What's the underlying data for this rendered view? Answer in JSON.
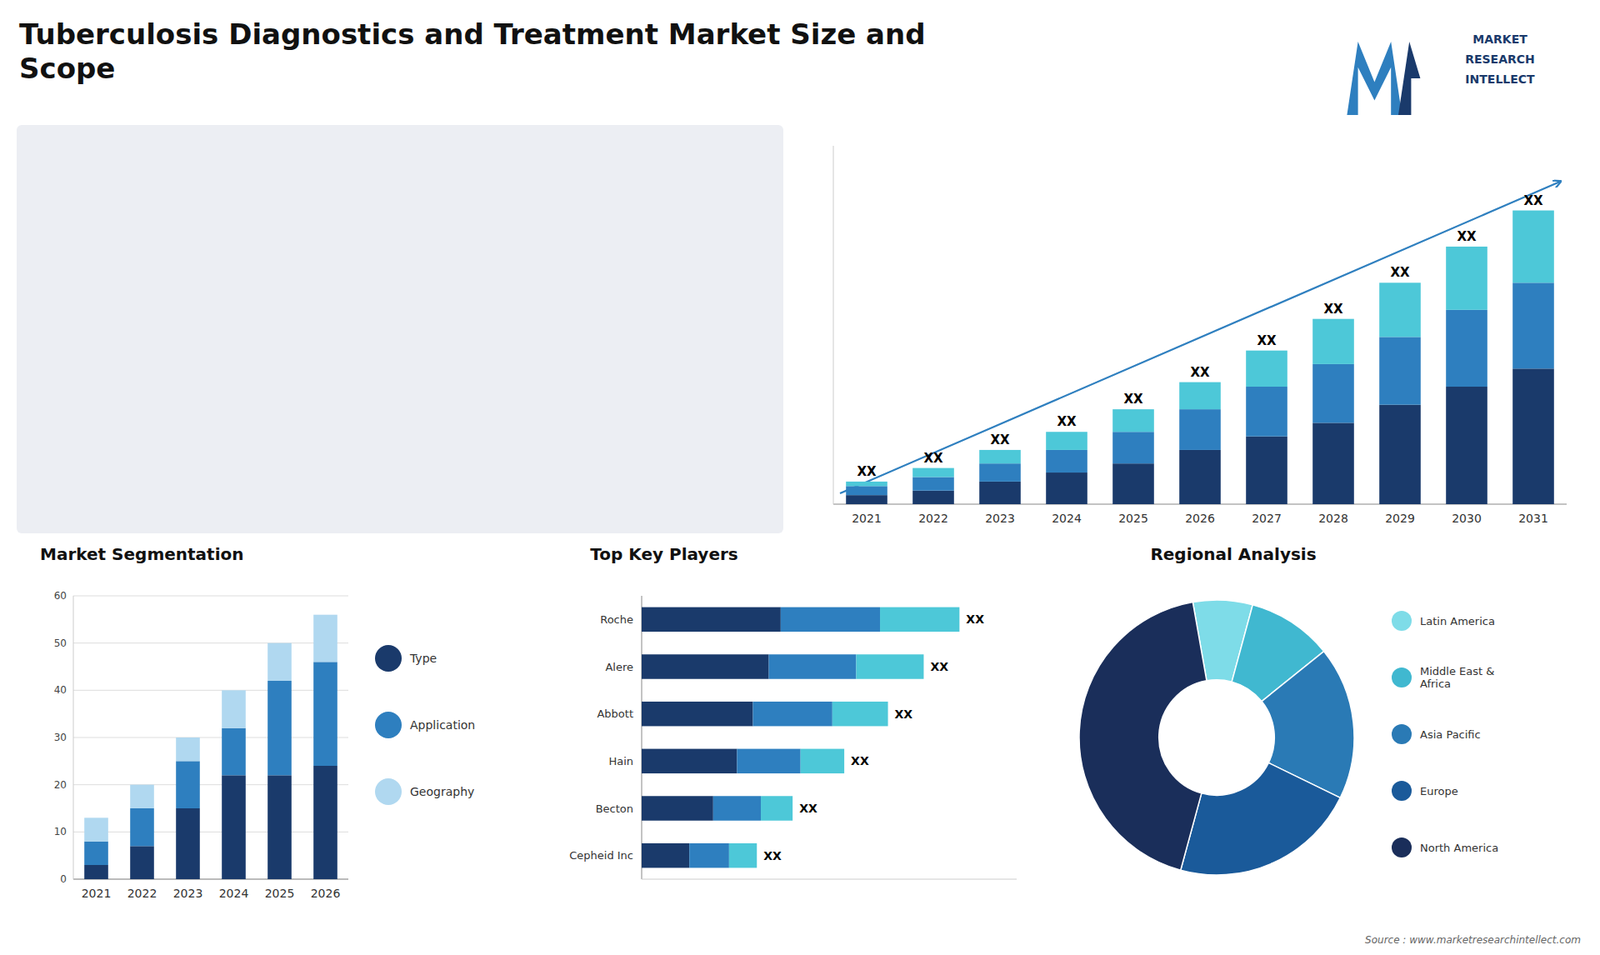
{
  "chart_data": [
    {
      "type": "bar",
      "title": "Tuberculosis Diagnostics and Treatment Market Size and\nScope",
      "stacked": true,
      "categories": [
        "2021",
        "2022",
        "2023",
        "2024",
        "2025",
        "2026",
        "2027",
        "2028",
        "2029",
        "2030",
        "2031"
      ],
      "series": [
        {
          "color": "#1a3a6b",
          "values": [
            2,
            3,
            5,
            7,
            9,
            12,
            15,
            18,
            22,
            26,
            30
          ]
        },
        {
          "color": "#2e7fbf",
          "values": [
            2,
            3,
            4,
            5,
            7,
            9,
            11,
            13,
            15,
            17,
            19
          ]
        },
        {
          "color": "#4dc8d8",
          "values": [
            1,
            2,
            3,
            4,
            5,
            6,
            8,
            10,
            12,
            14,
            16
          ]
        }
      ],
      "ylim": [
        0,
        79.3
      ],
      "tick_labels": "x",
      "annotations": [
        "XX",
        "XX",
        "XX",
        "XX",
        "XX",
        "XX",
        "XX",
        "XX",
        "XX",
        "XX",
        "XX"
      ]
    },
    {
      "type": "bar",
      "title": "Market Segmentation",
      "stacked": true,
      "categories": [
        "2021",
        "2022",
        "2023",
        "2024",
        "2025",
        "2026"
      ],
      "series": [
        {
          "name": "Type",
          "color": "#1a3a6b",
          "values": [
            3,
            7,
            15,
            22,
            22,
            24
          ]
        },
        {
          "name": "Application",
          "color": "#2e7fbf",
          "values": [
            5,
            8,
            10,
            10,
            20,
            22
          ]
        },
        {
          "name": "Geography",
          "color": "#b0d8f0",
          "values": [
            5,
            5,
            5,
            8,
            8,
            10
          ]
        }
      ],
      "ylim": [
        0,
        60
      ],
      "yticks": [
        0,
        10,
        20,
        30,
        40,
        50,
        60
      ],
      "grid": true,
      "legend": "right"
    },
    {
      "type": "bar",
      "title": "Top Key Players",
      "orientation": "horizontal",
      "stacked": true,
      "categories": [
        "Roche",
        "Alere",
        "Abbott",
        "Hain",
        "Becton",
        "Cepheid Inc"
      ],
      "series": [
        {
          "color": "#1a3a6b",
          "values": [
            35,
            32,
            28,
            24,
            18,
            12
          ]
        },
        {
          "color": "#2e7fbf",
          "values": [
            25,
            22,
            20,
            16,
            12,
            10
          ]
        },
        {
          "color": "#4dc8d8",
          "values": [
            20,
            17,
            14,
            11,
            8,
            7
          ]
        }
      ],
      "xlim": [
        0,
        94.4
      ],
      "tick_labels": "y",
      "annotations": [
        "XX",
        "XX",
        "XX",
        "XX",
        "XX",
        "XX"
      ]
    },
    {
      "type": "pie",
      "title": "Regional Analysis",
      "categories": [
        "Latin America",
        "Middle East &\nAfrica",
        "Asia Pacific",
        "Europe",
        "North America"
      ],
      "values": [
        7,
        10,
        18,
        22,
        43
      ],
      "colors": [
        "#7edce8",
        "#40b8d0",
        "#2a7ab5",
        "#1a5a9a",
        "#1a2e5a"
      ],
      "legend": "right",
      "annotations": [
        "MARKET",
        "RESEARCH",
        "INTELLECT",
        "Source : www.marketresearchintellect.com"
      ]
    }
  ]
}
